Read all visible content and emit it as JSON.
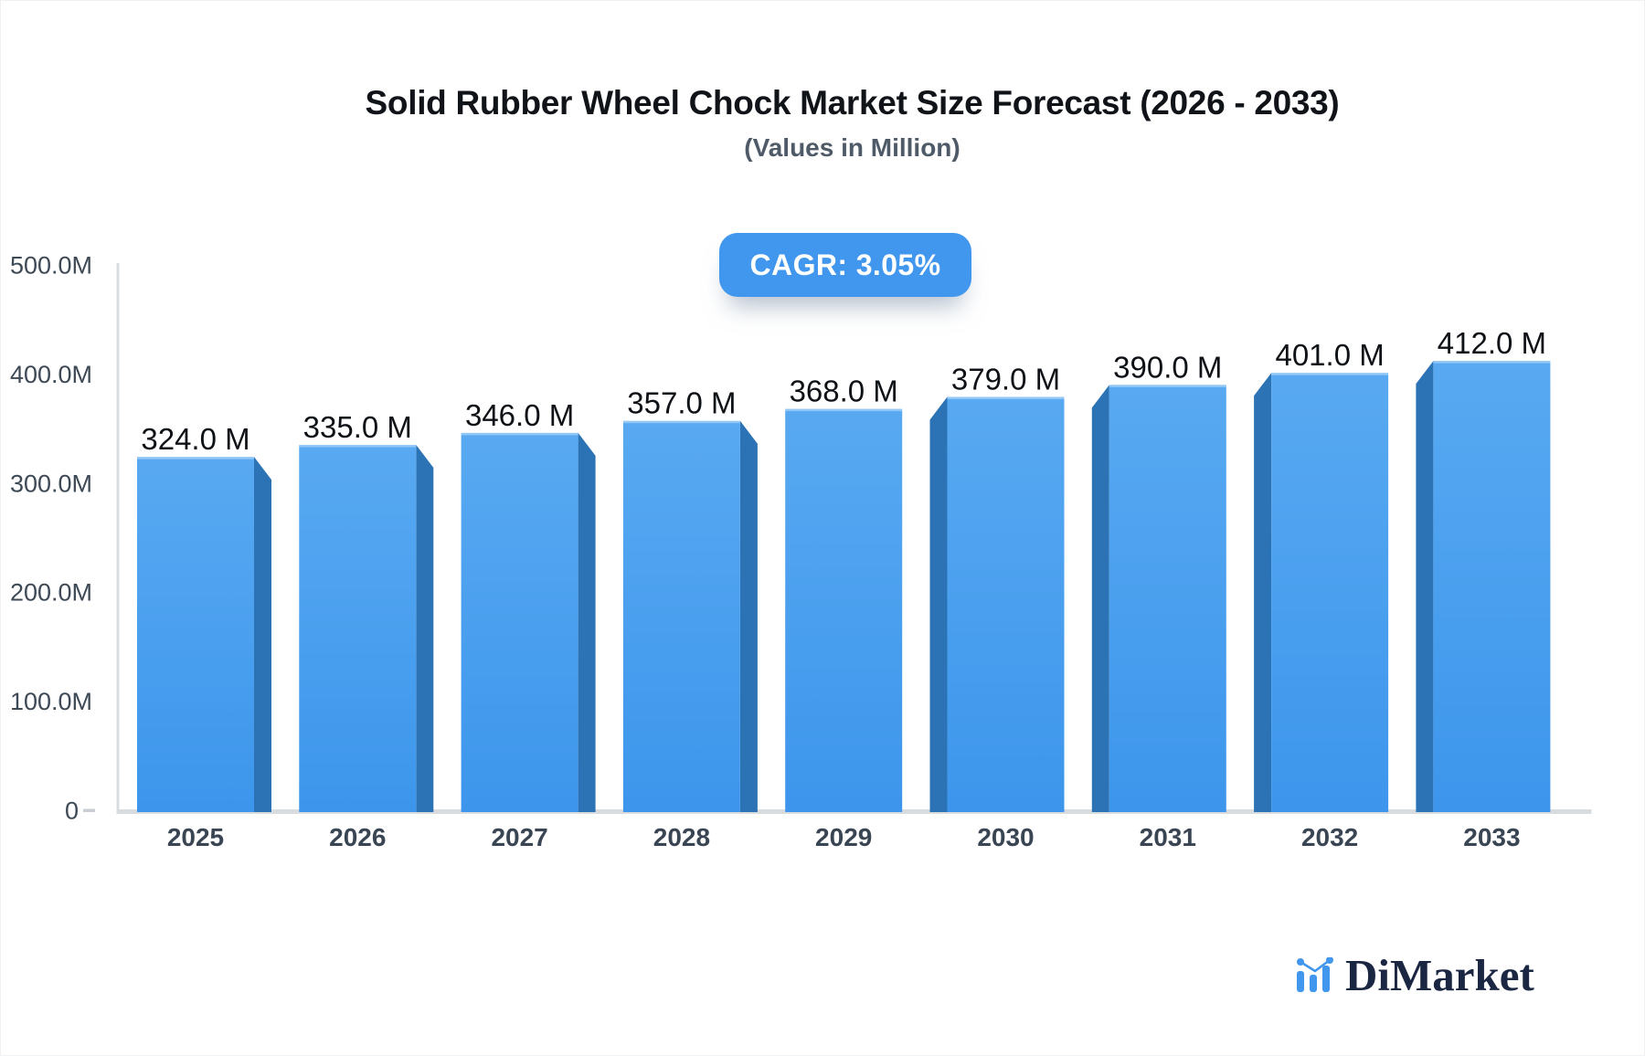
{
  "title": "Solid Rubber Wheel Chock Market Size Forecast (2026 - 2033)",
  "subtitle": "(Values in Million)",
  "badge": {
    "label": "CAGR: 3.05%"
  },
  "watermark": {
    "brand": "DiMarket",
    "icon": "bar-chart-trend-icon"
  },
  "colors": {
    "bar_front_top": "#58a9f1",
    "bar_front_bottom": "#3d96ec",
    "bar_top_highlight": "rgba(255,255,255,0.35)",
    "bar_side": "#2b73b5",
    "axis_line": "#d9dcdf",
    "zero_dash": "#c9ced4",
    "tick_text": "#3e4956",
    "year_text": "#3a4554",
    "value_text": "#0e1116",
    "badge_bg": "#4196ee",
    "badge_text": "#ffffff",
    "title_text": "#101318",
    "subtitle_text": "#4e5a68",
    "logo_text": "#1b2642",
    "logo_icon": "#4196ee"
  },
  "chart_data": {
    "type": "bar",
    "title": "Solid Rubber Wheel Chock Market Size Forecast (2026 - 2033)",
    "subtitle": "(Values in Million)",
    "unit": "Million",
    "cagr": "3.05%",
    "categories": [
      "2025",
      "2026",
      "2027",
      "2028",
      "2029",
      "2030",
      "2031",
      "2032",
      "2033"
    ],
    "values": [
      324,
      335,
      346,
      357,
      368,
      379,
      390,
      401,
      412
    ],
    "value_labels": [
      "324.0 M",
      "335.0 M",
      "346.0 M",
      "357.0 M",
      "368.0 M",
      "379.0 M",
      "390.0 M",
      "401.0 M",
      "412.0 M"
    ],
    "y_ticks": [
      {
        "value": 500,
        "label": "500.0M"
      },
      {
        "value": 400,
        "label": "400.0M"
      },
      {
        "value": 300,
        "label": "300.0M"
      },
      {
        "value": 200,
        "label": "200.0M"
      },
      {
        "value": 100,
        "label": "100.0M"
      },
      {
        "value": 0,
        "label": "0"
      }
    ],
    "ylim": [
      0,
      500
    ],
    "grid": false,
    "legend": false,
    "style": "pseudo-3d bars, side faces angled toward center column"
  }
}
